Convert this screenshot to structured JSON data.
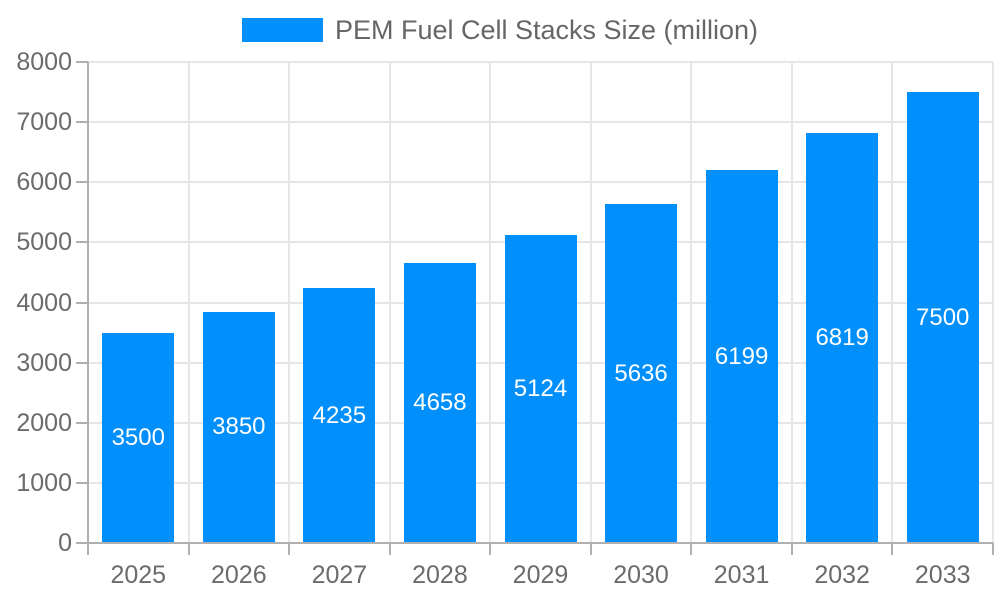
{
  "legend": {
    "label": "PEM Fuel Cell Stacks Size (million)"
  },
  "colors": {
    "bar": "#008FFB",
    "grid": "#e6e6e6",
    "axis": "#b0b0b0",
    "tick": "#b0b0b0",
    "axis_label": "#6b6b6b",
    "legend_text": "#666666",
    "value_label": "#ffffff",
    "background": "#ffffff"
  },
  "chart_data": {
    "type": "bar",
    "title": "",
    "xlabel": "",
    "ylabel": "",
    "categories": [
      "2025",
      "2026",
      "2027",
      "2028",
      "2029",
      "2030",
      "2031",
      "2032",
      "2033"
    ],
    "series": [
      {
        "name": "PEM Fuel Cell Stacks Size (million)",
        "values": [
          3500,
          3850,
          4235,
          4658,
          5124,
          5636,
          6199,
          6819,
          7500
        ]
      }
    ],
    "data_labels": [
      3500,
      3850,
      4235,
      4658,
      5124,
      5636,
      6199,
      6819,
      7500
    ],
    "ylim": [
      0,
      8000
    ],
    "ytick_step": 1000,
    "ytick_labels": [
      "0",
      "1000",
      "2000",
      "3000",
      "4000",
      "5000",
      "6000",
      "7000",
      "8000"
    ],
    "grid": true,
    "legend_position": "top-center"
  }
}
